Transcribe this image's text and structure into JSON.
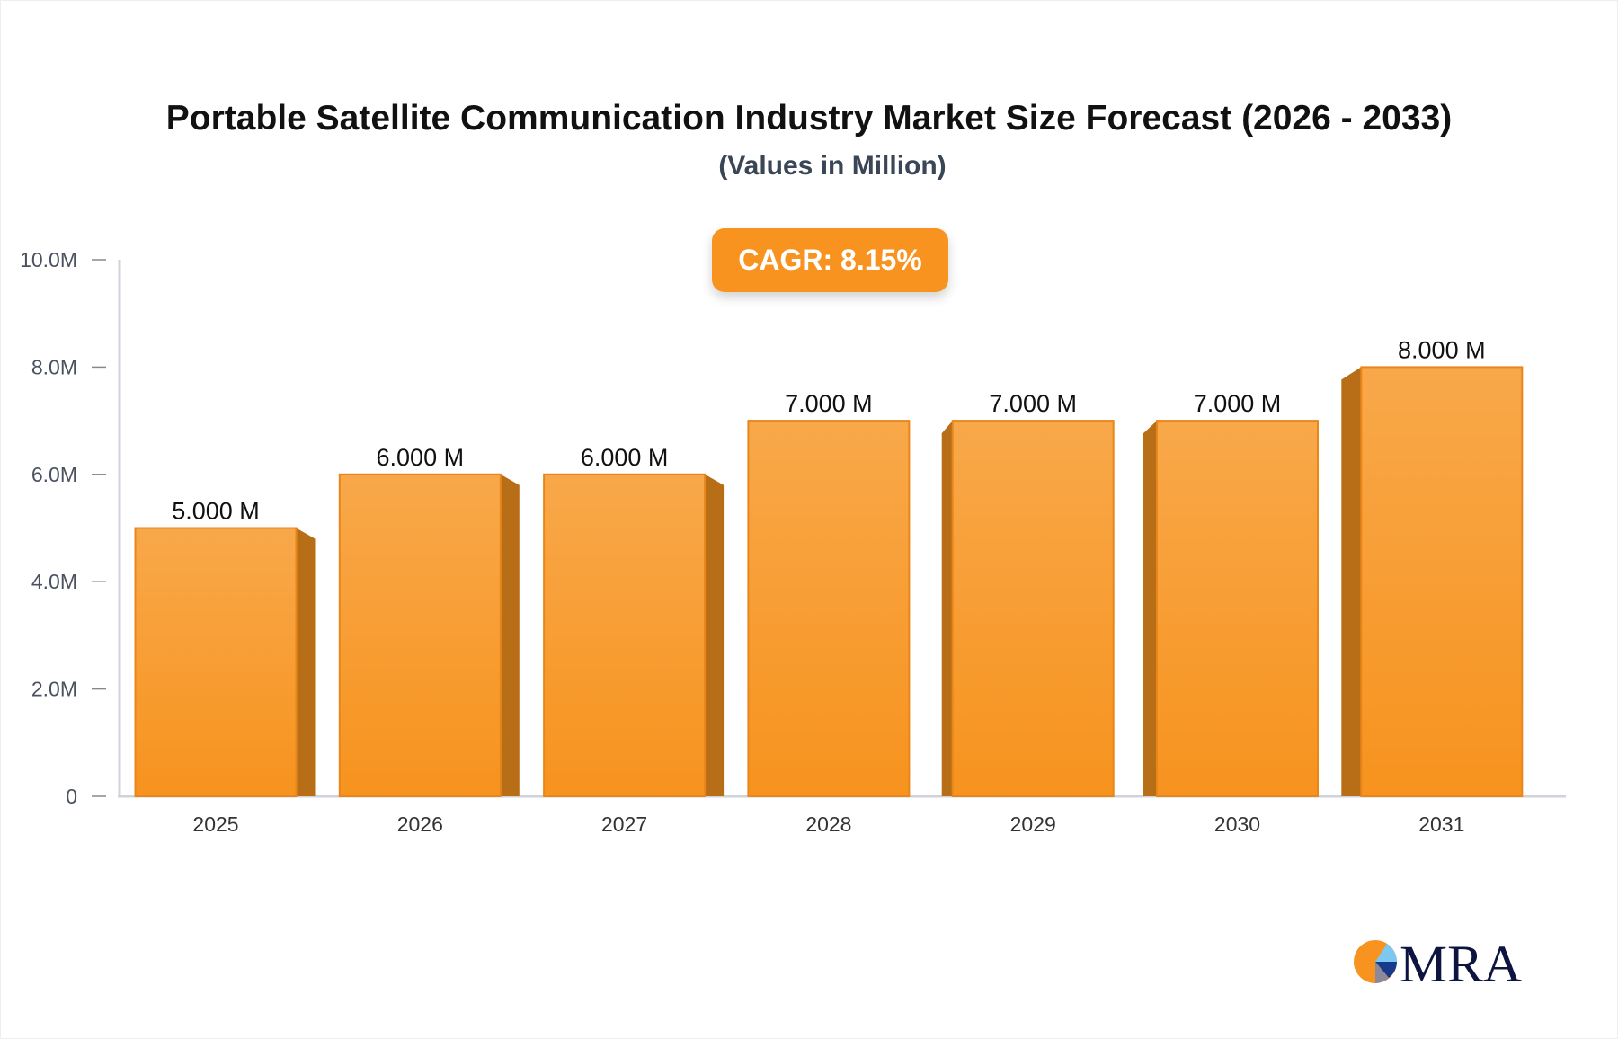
{
  "chart_data": {
    "type": "bar",
    "title": "Portable Satellite Communication Industry Market Size Forecast (2026 - 2033)",
    "subtitle": "(Values in Million)",
    "categories": [
      "2025",
      "2026",
      "2027",
      "2028",
      "2029",
      "2030",
      "2031"
    ],
    "values": [
      5,
      6,
      6,
      7,
      7,
      7,
      8
    ],
    "data_labels": [
      "5.000 M",
      "6.000 M",
      "6.000 M",
      "7.000 M",
      "7.000 M",
      "7.000 M",
      "8.000 M"
    ],
    "ylim": [
      0,
      10
    ],
    "yticks": [
      0,
      2,
      4,
      6,
      8,
      10
    ],
    "ytick_labels": [
      "0",
      "2.0M",
      "4.0M",
      "6.0M",
      "8.0M",
      "10.0M"
    ],
    "xlabel": "",
    "ylabel": "",
    "grid": false,
    "bar_color": "#f7931e",
    "annotation": "CAGR: 8.15%"
  },
  "logo": {
    "text": "MRA"
  }
}
